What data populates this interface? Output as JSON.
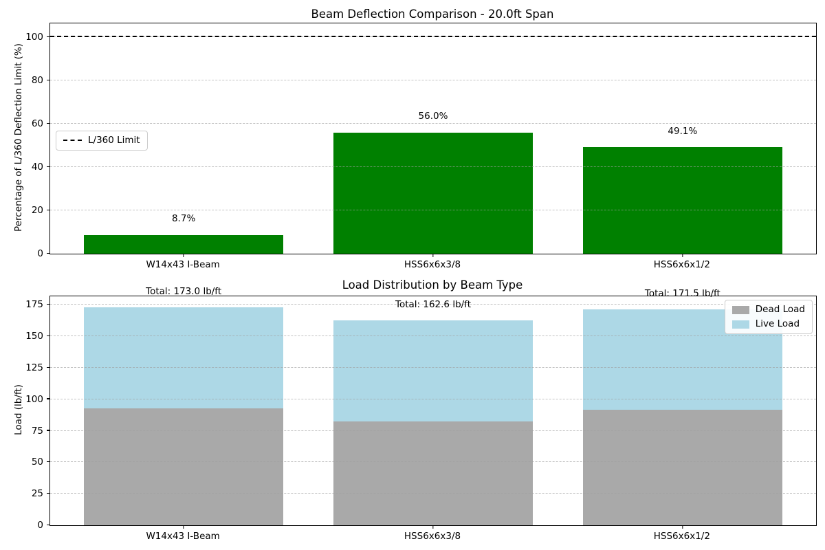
{
  "figure": {
    "background": "#ffffff"
  },
  "chart_data": [
    {
      "type": "bar",
      "title": "Beam Deflection Comparison - 20.0ft Span",
      "ylabel": "Percentage of L/360 Deflection Limit (%)",
      "xlabel": "",
      "categories": [
        "W14x43 I-Beam",
        "HSS6x6x3/8",
        "HSS6x6x1/2"
      ],
      "values": [
        8.7,
        56.0,
        49.1
      ],
      "bar_labels": [
        "8.7%",
        "56.0%",
        "49.1%"
      ],
      "bar_color": "#008000",
      "yticks": [
        0,
        20,
        40,
        60,
        80,
        100
      ],
      "ylim": [
        0,
        106.3
      ],
      "label_offset": 5,
      "grid": true,
      "ref_line": {
        "value": 100,
        "color": "#000000",
        "style": "dashed",
        "label": "L/360 Limit"
      },
      "legend": {
        "position": "center-left",
        "entries": [
          {
            "label": "L/360 Limit",
            "swatch": "dashed-line",
            "color": "#000000"
          }
        ]
      }
    },
    {
      "type": "stacked-bar",
      "title": "Load Distribution by Beam Type",
      "ylabel": "Load (lb/ft)",
      "xlabel": "",
      "categories": [
        "W14x43 I-Beam",
        "HSS6x6x3/8",
        "HSS6x6x1/2"
      ],
      "series": [
        {
          "name": "Dead Load",
          "color": "#a9a9a9",
          "values": [
            93.0,
            82.6,
            91.5
          ]
        },
        {
          "name": "Live Load",
          "color": "#add8e6",
          "values": [
            80.0,
            80.0,
            80.0
          ]
        }
      ],
      "totals": [
        173.0,
        162.6,
        171.5
      ],
      "total_labels": [
        "Total: 173.0 lb/ft",
        "Total: 162.6 lb/ft",
        "Total: 171.5 lb/ft"
      ],
      "yticks": [
        0,
        25,
        50,
        75,
        100,
        125,
        150,
        175
      ],
      "ylim": [
        0,
        181.7
      ],
      "label_offset": 8,
      "grid": true,
      "legend": {
        "position": "top-right",
        "entries": [
          {
            "label": "Dead Load",
            "swatch": "patch",
            "color": "#a9a9a9"
          },
          {
            "label": "Live Load",
            "swatch": "patch",
            "color": "#add8e6"
          }
        ]
      }
    }
  ]
}
